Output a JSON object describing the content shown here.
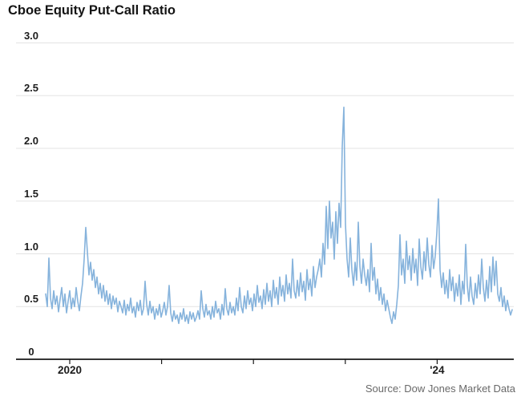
{
  "title": "Cboe Equity Put-Call Ratio",
  "source": "Source: Dow Jones Market Data",
  "colors": {
    "series": "#86b3dc",
    "grid": "#e3e3e3",
    "axis": "#1a1a1a",
    "tick_text": "#1c1c1c",
    "source_text": "#696969",
    "background": "#ffffff"
  },
  "chart_data": {
    "type": "line",
    "title": "Cboe Equity Put-Call Ratio",
    "xlabel": "",
    "ylabel": "",
    "ylim": [
      0,
      3.0
    ],
    "grid": true,
    "legend": "none",
    "yticks": [
      {
        "value": 3.0,
        "label": "3.0"
      },
      {
        "value": 2.5,
        "label": "2.5"
      },
      {
        "value": 2.0,
        "label": "2.0"
      },
      {
        "value": 1.5,
        "label": "1.5"
      },
      {
        "value": 1.0,
        "label": "1.0"
      },
      {
        "value": 0.5,
        "label": "0.5"
      },
      {
        "value": 0.0,
        "label": "0"
      }
    ],
    "xticks": [
      {
        "year": 2020,
        "label": "2020"
      },
      {
        "year": 2021,
        "label": ""
      },
      {
        "year": 2022,
        "label": ""
      },
      {
        "year": 2023,
        "label": ""
      },
      {
        "year": 2024,
        "label": "'24"
      }
    ],
    "x_start": 2019.738,
    "x_step": 0.017453,
    "series": [
      {
        "name": "Cboe Equity Put-Call Ratio (daily)",
        "values": [
          0.62,
          0.5,
          0.96,
          0.58,
          0.48,
          0.65,
          0.52,
          0.6,
          0.45,
          0.57,
          0.68,
          0.5,
          0.62,
          0.44,
          0.55,
          0.65,
          0.48,
          0.58,
          0.5,
          0.68,
          0.55,
          0.46,
          0.6,
          0.72,
          0.95,
          1.25,
          1.02,
          0.8,
          0.92,
          0.75,
          0.85,
          0.68,
          0.78,
          0.62,
          0.72,
          0.58,
          0.7,
          0.55,
          0.65,
          0.52,
          0.62,
          0.48,
          0.6,
          0.52,
          0.58,
          0.45,
          0.55,
          0.5,
          0.44,
          0.56,
          0.42,
          0.52,
          0.46,
          0.58,
          0.44,
          0.5,
          0.4,
          0.54,
          0.46,
          0.56,
          0.42,
          0.48,
          0.74,
          0.52,
          0.42,
          0.55,
          0.44,
          0.5,
          0.38,
          0.48,
          0.42,
          0.52,
          0.4,
          0.46,
          0.54,
          0.42,
          0.5,
          0.7,
          0.44,
          0.36,
          0.46,
          0.38,
          0.42,
          0.34,
          0.44,
          0.38,
          0.48,
          0.36,
          0.42,
          0.34,
          0.45,
          0.38,
          0.44,
          0.36,
          0.4,
          0.46,
          0.38,
          0.65,
          0.48,
          0.4,
          0.52,
          0.42,
          0.46,
          0.38,
          0.5,
          0.4,
          0.55,
          0.44,
          0.48,
          0.38,
          0.52,
          0.42,
          0.67,
          0.48,
          0.42,
          0.54,
          0.44,
          0.5,
          0.42,
          0.58,
          0.46,
          0.68,
          0.5,
          0.44,
          0.6,
          0.48,
          0.65,
          0.52,
          0.58,
          0.46,
          0.62,
          0.5,
          0.7,
          0.54,
          0.6,
          0.48,
          0.66,
          0.52,
          0.72,
          0.55,
          0.65,
          0.5,
          0.75,
          0.58,
          0.68,
          0.52,
          0.78,
          0.6,
          0.7,
          0.55,
          0.8,
          0.62,
          0.72,
          0.58,
          0.95,
          0.65,
          0.58,
          0.75,
          0.6,
          0.82,
          0.64,
          0.74,
          0.56,
          0.85,
          0.66,
          0.76,
          0.6,
          0.88,
          0.68,
          0.78,
          0.85,
          0.95,
          0.78,
          1.1,
          0.9,
          1.45,
          1.05,
          1.5,
          1.15,
          1.3,
          0.95,
          1.4,
          1.1,
          1.48,
          1.25,
          2.02,
          2.39,
          1.28,
          0.95,
          0.78,
          1.15,
          0.85,
          0.7,
          0.92,
          0.75,
          1.3,
          0.88,
          0.72,
          0.95,
          0.8,
          0.7,
          0.85,
          0.64,
          1.1,
          0.75,
          0.87,
          0.62,
          0.76,
          0.56,
          0.68,
          0.52,
          0.62,
          0.46,
          0.56,
          0.48,
          0.4,
          0.34,
          0.45,
          0.38,
          0.52,
          0.7,
          1.18,
          0.8,
          0.95,
          0.72,
          1.12,
          0.85,
          0.98,
          0.75,
          1.05,
          0.82,
          0.95,
          0.7,
          1.14,
          0.88,
          0.76,
          1.02,
          0.84,
          1.15,
          0.9,
          0.78,
          1.08,
          0.86,
          0.98,
          1.2,
          1.52,
          0.85,
          0.68,
          0.82,
          0.62,
          0.75,
          0.58,
          0.85,
          0.65,
          0.78,
          0.55,
          0.72,
          0.6,
          0.8,
          0.52,
          0.74,
          0.62,
          1.09,
          0.7,
          0.55,
          0.78,
          0.6,
          0.52,
          0.72,
          0.58,
          0.8,
          0.62,
          0.95,
          0.68,
          0.55,
          0.75,
          0.58,
          0.88,
          0.64,
          0.97,
          0.7,
          0.93,
          0.62,
          0.55,
          0.68,
          0.5,
          0.6,
          0.46,
          0.56,
          0.48,
          0.42,
          0.47
        ]
      }
    ]
  }
}
